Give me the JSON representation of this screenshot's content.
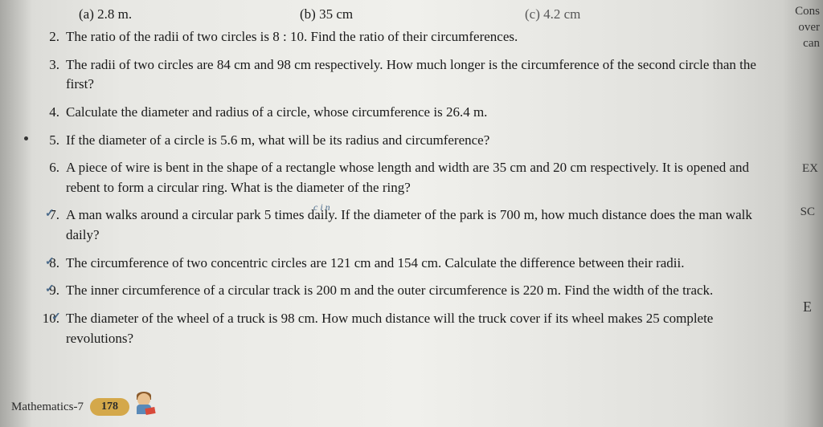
{
  "options": {
    "a": "(a) 2.8 m.",
    "b": "(b) 35 cm",
    "c": "(c) 4.2 cm"
  },
  "questions": {
    "q2": {
      "num": "2.",
      "text": "The ratio of the radii of two circles is 8 : 10. Find the ratio of their circumferences."
    },
    "q3": {
      "num": "3.",
      "text": "The radii of two circles are 84 cm and 98 cm respectively. How much longer is the circumference of the second circle than the first?"
    },
    "q4": {
      "num": "4.",
      "text": "Calculate the diameter and radius of a circle, whose circumference is 26.4 m."
    },
    "q5": {
      "num": "5.",
      "text": "If the diameter of a circle is 5.6 m, what will be its radius and circumference?"
    },
    "q6": {
      "num": "6.",
      "text": "A piece of wire is bent in the shape of a rectangle whose length and width are 35 cm and 20 cm respectively. It is opened and rebent to form a circular ring. What is the diameter of the ring?"
    },
    "q7": {
      "num": "7.",
      "text": "A man walks around a circular park 5 times daily. If the diameter of the park is 700 m, how much distance does the man walk daily?"
    },
    "q8": {
      "num": "8.",
      "text": "The circumference of two concentric circles are 121 cm and 154 cm. Calculate the difference between their radii."
    },
    "q9": {
      "num": "9.",
      "text": "The inner circumference of a circular track is 200 m and the outer circumference is 220 m. Find the width of the track."
    },
    "q10": {
      "num": "10.",
      "text": "The diameter of the wheel of a truck is 98 cm. How much distance will the truck cover if its wheel makes 25 complete revolutions?"
    }
  },
  "margin": {
    "cons": "Cons",
    "over": "over",
    "can": "can",
    "ex": "EX",
    "sc": "SC",
    "e": "E"
  },
  "annotations": {
    "concentric": "c i n"
  },
  "footer": {
    "label": "Mathematics-7",
    "page": "178"
  },
  "colors": {
    "text": "#1a1a1a",
    "tick": "#4a6a8a",
    "badge_bg": "#d4a84a",
    "page_bg_light": "#f0f0ec",
    "page_bg_dark": "#c8c8c4"
  },
  "typography": {
    "body_fontsize": 17,
    "footer_fontsize": 15,
    "font_family": "Georgia, Times New Roman, serif"
  }
}
